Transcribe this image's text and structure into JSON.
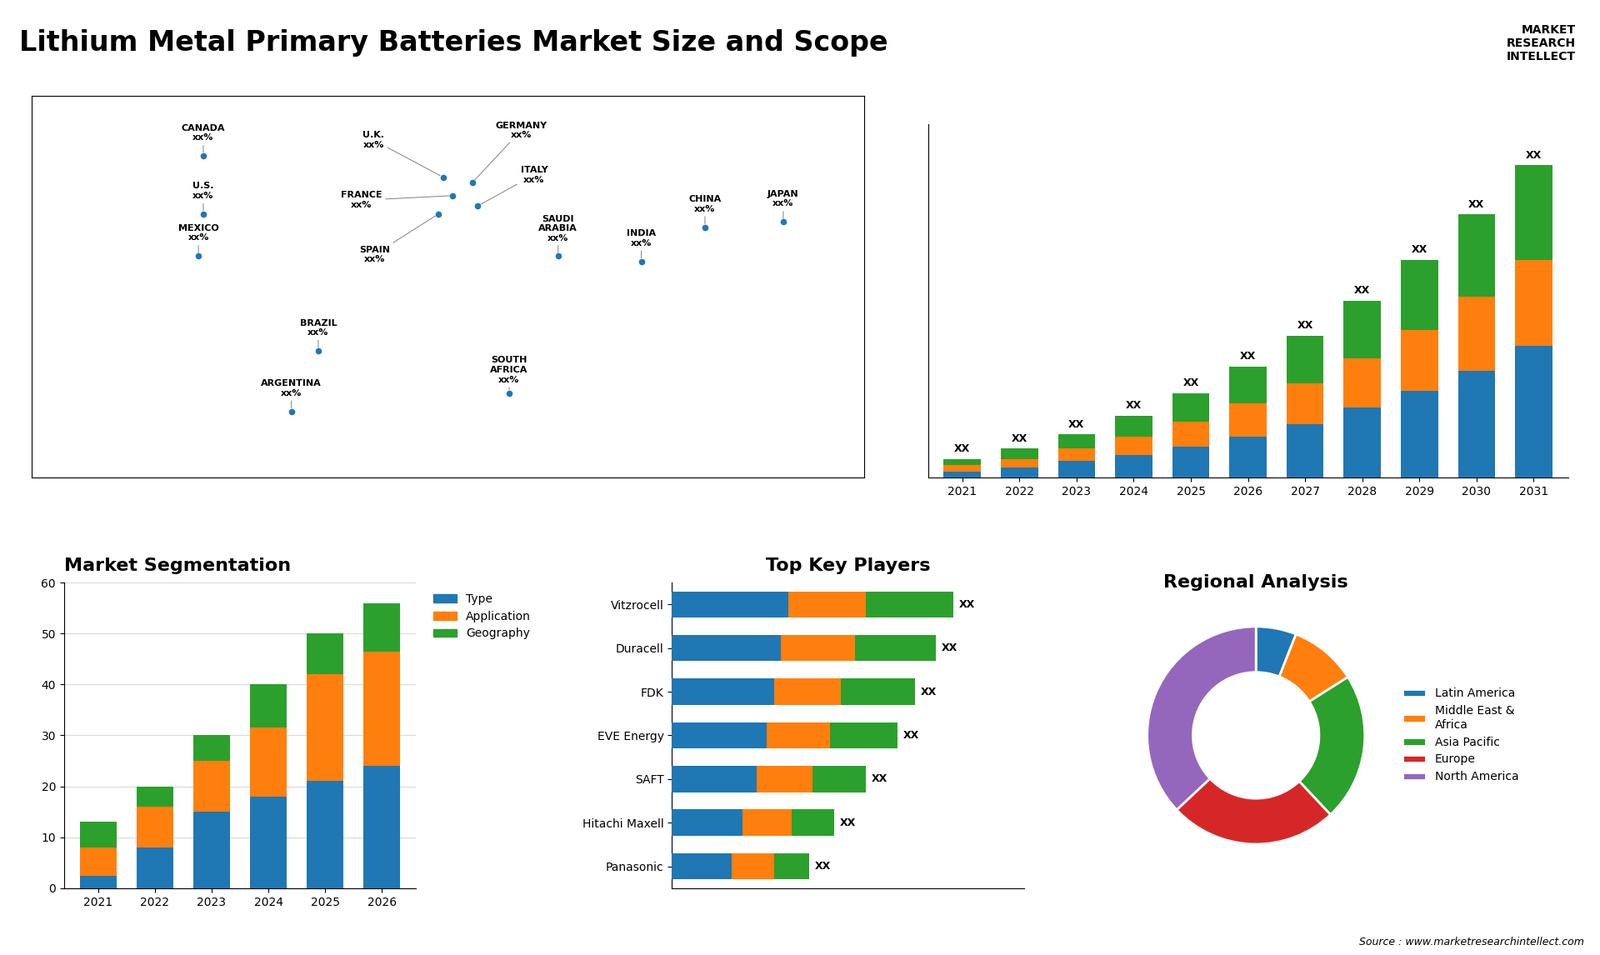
{
  "title": "Lithium Metal Primary Batteries Market Size and Scope",
  "annotations": [
    "MARKET\nRESEARCH\nINTELLECT",
    "Source : www.marketresearchintellect.com"
  ],
  "chart_data": [
    {
      "type": "map",
      "xlim": [
        -170,
        170
      ],
      "ylim": [
        -60,
        85
      ],
      "xticks": [],
      "yticks": [],
      "tick_labels": false,
      "annotations": [
        {
          "text": "CANADA\nxx%",
          "x": -100,
          "y": 62
        },
        {
          "text": "U.S.\nxx%",
          "x": -100,
          "y": 40
        },
        {
          "text": "MEXICO\nxx%",
          "x": -102,
          "y": 24
        },
        {
          "text": "BRAZIL\nxx%",
          "x": -53,
          "y": -12
        },
        {
          "text": "ARGENTINA\nxx%",
          "x": -64,
          "y": -35
        },
        {
          "text": "U.K.\nxx%",
          "x": -2,
          "y": 54
        },
        {
          "text": "FRANCE\nxx%",
          "x": 2,
          "y": 47
        },
        {
          "text": "SPAIN\nxx%",
          "x": -4,
          "y": 40
        },
        {
          "text": "GERMANY\nxx%",
          "x": 10,
          "y": 52
        },
        {
          "text": "ITALY\nxx%",
          "x": 12,
          "y": 43
        },
        {
          "text": "SAUDI\nARABIA\nxx%",
          "x": 45,
          "y": 24
        },
        {
          "text": "SOUTH\nAFRICA\nxx%",
          "x": 25,
          "y": -28
        },
        {
          "text": "CHINA\nxx%",
          "x": 105,
          "y": 35
        },
        {
          "text": "INDIA\nxx%",
          "x": 79,
          "y": 22
        },
        {
          "text": "JAPAN\nxx%",
          "x": 137,
          "y": 37
        }
      ]
    },
    {
      "type": "bar",
      "stacked": true,
      "data_labels": true,
      "tick_labels": "x",
      "categories": [
        "2021",
        "2022",
        "2023",
        "2024",
        "2025",
        "2026",
        "2027",
        "2028",
        "2029",
        "2030",
        "2031"
      ],
      "series": [
        {
          "values": [
            1.5,
            2.5,
            4.0,
            5.5,
            7.5,
            10.0,
            13.0,
            17.0,
            21.0,
            26.0,
            32.0
          ]
        },
        {
          "values": [
            1.5,
            2.0,
            3.0,
            4.5,
            6.0,
            8.0,
            10.0,
            12.0,
            15.0,
            18.0,
            21.0
          ]
        },
        {
          "values": [
            1.5,
            2.5,
            3.5,
            5.0,
            7.0,
            9.0,
            11.5,
            14.0,
            17.0,
            20.0,
            23.0
          ],
          "value_labels": [
            "XX",
            "XX",
            "XX",
            "XX",
            "XX",
            "XX",
            "XX",
            "XX",
            "XX",
            "XX",
            "XX"
          ]
        }
      ],
      "ylim": [
        0,
        86
      ],
      "yticks": []
    },
    {
      "type": "bar",
      "stacked": true,
      "title": "Market Segmentation",
      "categories": [
        "2021",
        "2022",
        "2023",
        "2024",
        "2025",
        "2026"
      ],
      "series": [
        {
          "name": "Type",
          "values": [
            2.5,
            8,
            15,
            18,
            21,
            24
          ]
        },
        {
          "name": "Application",
          "values": [
            5.5,
            8,
            10,
            13.5,
            21,
            22.5
          ]
        },
        {
          "name": "Geography",
          "values": [
            5,
            4,
            5,
            8.5,
            8,
            9.5
          ]
        }
      ],
      "ylim": [
        0,
        60
      ],
      "yticks": [
        0,
        10,
        20,
        30,
        40,
        50,
        60
      ],
      "grid": true,
      "legend": "upper left"
    },
    {
      "type": "bar",
      "orientation": "horizontal",
      "stacked": true,
      "title": "Top Key Players",
      "data_labels": true,
      "tick_labels": "y",
      "categories": [
        "Vitzrocell",
        "Duracell",
        "FDK",
        "EVE Energy",
        "SAFT",
        "Hitachi Maxell",
        "Panasonic"
      ],
      "series": [
        {
          "values": [
            0.33,
            0.31,
            0.29,
            0.27,
            0.24,
            0.2,
            0.17
          ]
        },
        {
          "values": [
            0.22,
            0.21,
            0.19,
            0.18,
            0.16,
            0.14,
            0.12
          ]
        },
        {
          "values": [
            0.25,
            0.23,
            0.21,
            0.19,
            0.15,
            0.12,
            0.1
          ],
          "value_labels": [
            "XX",
            "XX",
            "XX",
            "XX",
            "XX",
            "XX",
            "XX"
          ]
        }
      ],
      "xlim": [
        0,
        1
      ],
      "xticks": []
    },
    {
      "type": "pie",
      "title": "Regional Analysis",
      "categories": [
        "Latin America",
        "Middle East &\nAfrica",
        "Asia Pacific",
        "Europe",
        "North America"
      ],
      "values": [
        6,
        10,
        22,
        25,
        37
      ],
      "legend": "center left"
    }
  ]
}
